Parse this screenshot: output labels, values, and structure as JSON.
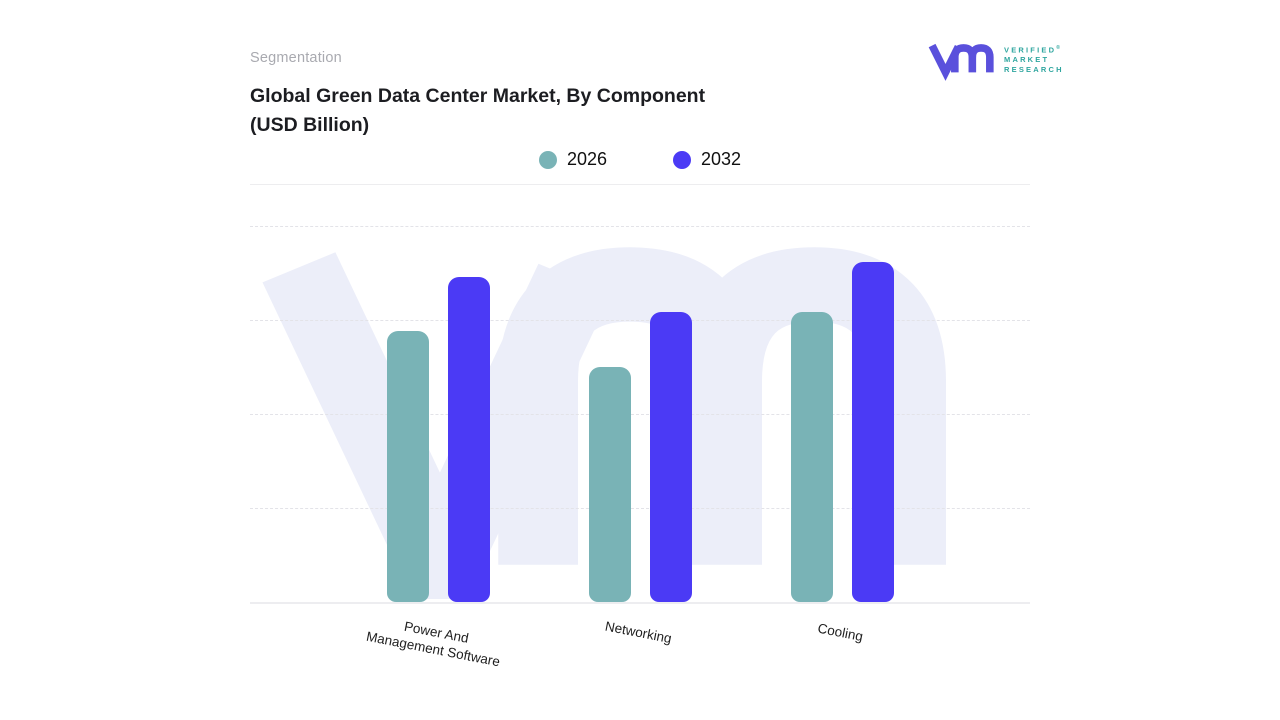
{
  "page": {
    "eyebrow": "Segmentation",
    "title": "Global Green Data Center Market, By Component\n(USD Billion)"
  },
  "brand": {
    "monogram_icon": "vm-monogram",
    "monogram_color": "#5a50dc",
    "wordmark_color": "#2fa69f",
    "wordmark_line1": "VERIFIED",
    "registered_mark": "®",
    "wordmark_line2": "MARKET",
    "wordmark_line3": "RESEARCH"
  },
  "chart_data": {
    "type": "bar",
    "title": "Global Green Data Center Market, By Component (USD Billion)",
    "units": "USD Billion",
    "categories": [
      "Power And\nManagement Software",
      "Networking",
      "Cooling"
    ],
    "series": [
      {
        "name": "2026",
        "color": "#79b3b6",
        "values": [
          72,
          62.5,
          77
        ]
      },
      {
        "name": "2032",
        "color": "#4b3af5",
        "values": [
          86.5,
          77,
          90.5
        ]
      }
    ],
    "ylim": [
      0,
      100
    ],
    "y_tick_interval": 25,
    "y_axis_tick_labels_visible": false,
    "value_scale": "relative units estimated from gridlines (top dashed gridline = 100, no numeric axis labels shown)",
    "grid": "horizontal dashed",
    "legend_position": "top-center",
    "x_label_rotation_deg": 11,
    "watermark": "vm monogram, light lavender #eceef9"
  }
}
